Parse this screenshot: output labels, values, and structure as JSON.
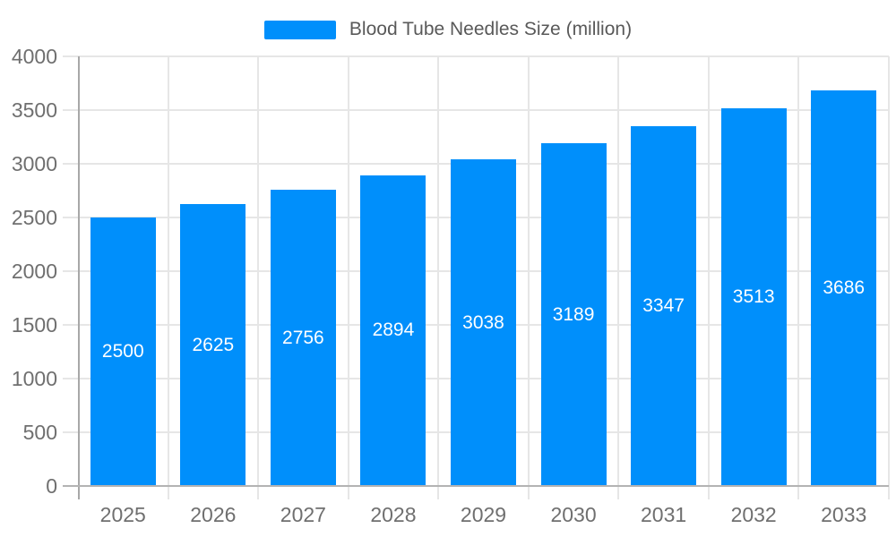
{
  "chart_data": {
    "type": "bar",
    "title": "Blood Tube Needles Size (million)",
    "categories": [
      "2025",
      "2026",
      "2027",
      "2028",
      "2029",
      "2030",
      "2031",
      "2032",
      "2033"
    ],
    "series": [
      {
        "name": "Blood Tube Needles Size (million)",
        "values": [
          2500,
          2625,
          2756,
          2894,
          3038,
          3189,
          3347,
          3513,
          3686
        ]
      }
    ],
    "value_labels": [
      "2500",
      "2625",
      "2756",
      "2894",
      "3038",
      "3189",
      "3347",
      "3513",
      "3686"
    ],
    "xlabel": "",
    "ylabel": "",
    "ylim": [
      0,
      4000
    ],
    "yticks": [
      0,
      500,
      1000,
      1500,
      2000,
      2500,
      3000,
      3500,
      4000
    ],
    "grid": true,
    "legend_position": "top",
    "value_labels_inside": true
  },
  "legend": {
    "label": "Blood Tube Needles Size (million)"
  },
  "colors": {
    "bar": "#008FFB",
    "bar_value_text": "#ffffff",
    "axis_text": "#6f6f6f",
    "legend_text": "#595959",
    "gridline": "#e6e6e6",
    "axis_line": "#a8a8a8",
    "baseline": "#b3b3b3",
    "background": "#ffffff"
  }
}
